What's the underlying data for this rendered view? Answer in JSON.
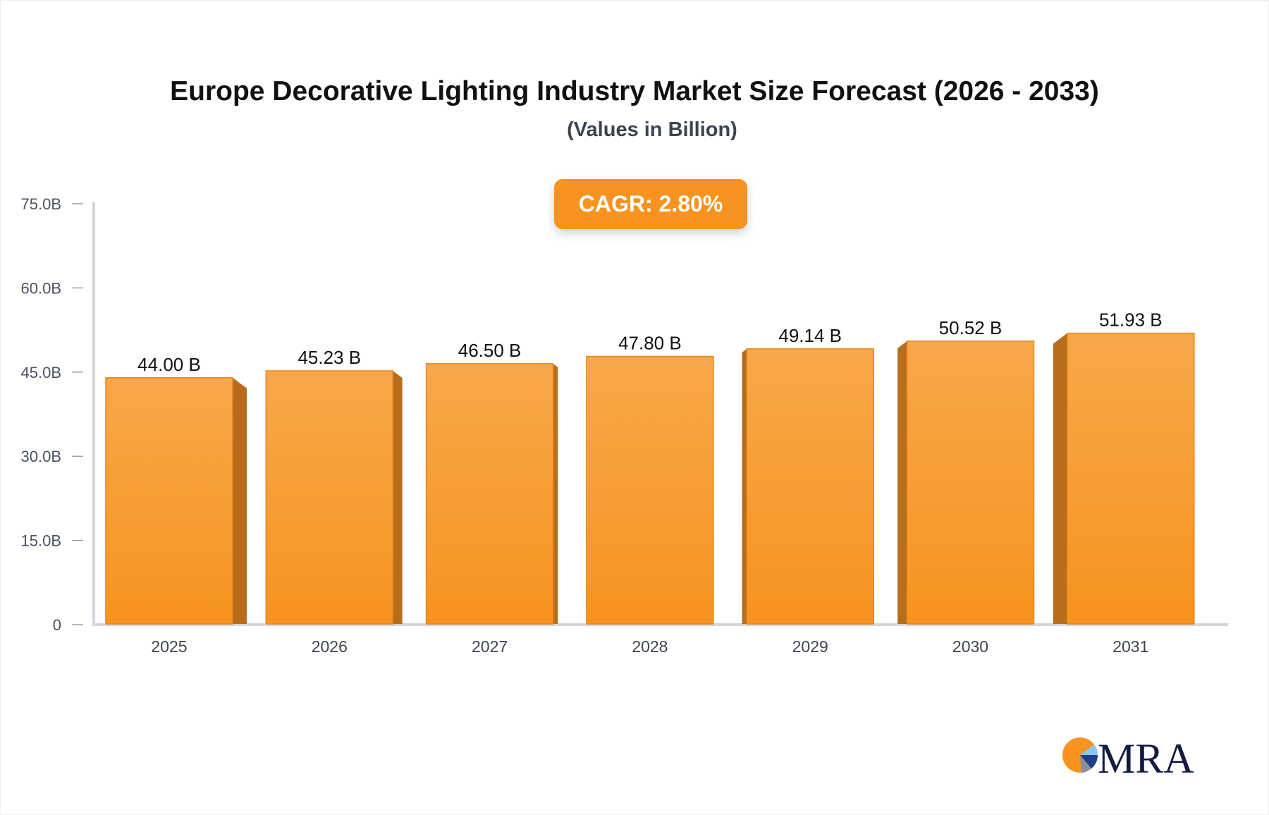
{
  "chart_data": {
    "type": "bar",
    "title": "Europe Decorative Lighting Industry Market Size Forecast (2026 - 2033)",
    "subtitle": "(Values in Billion)",
    "annotation": "CAGR: 2.80%",
    "categories": [
      "2025",
      "2026",
      "2027",
      "2028",
      "2029",
      "2030",
      "2031"
    ],
    "values": [
      44.0,
      45.23,
      46.5,
      47.8,
      49.14,
      50.52,
      51.93
    ],
    "data_labels": [
      "44.00 B",
      "45.23 B",
      "46.50 B",
      "47.80 B",
      "49.14 B",
      "50.52 B",
      "51.93 B"
    ],
    "ylim": [
      0,
      75
    ],
    "yticks": [
      0,
      15,
      30,
      45,
      60,
      75
    ],
    "ytick_labels": [
      "0",
      "15.0B",
      "30.0B",
      "45.0B",
      "60.0B",
      "75.0B"
    ],
    "xlabel": "",
    "ylabel": "",
    "grid": false,
    "colors": {
      "bar_top": "#f7a84b",
      "bar_bottom": "#f7931e",
      "bar_side": "#b86d1a",
      "axis": "#d4d6dc",
      "cagr_bg": "#f7931e"
    }
  },
  "logo": {
    "text": "MRA"
  }
}
